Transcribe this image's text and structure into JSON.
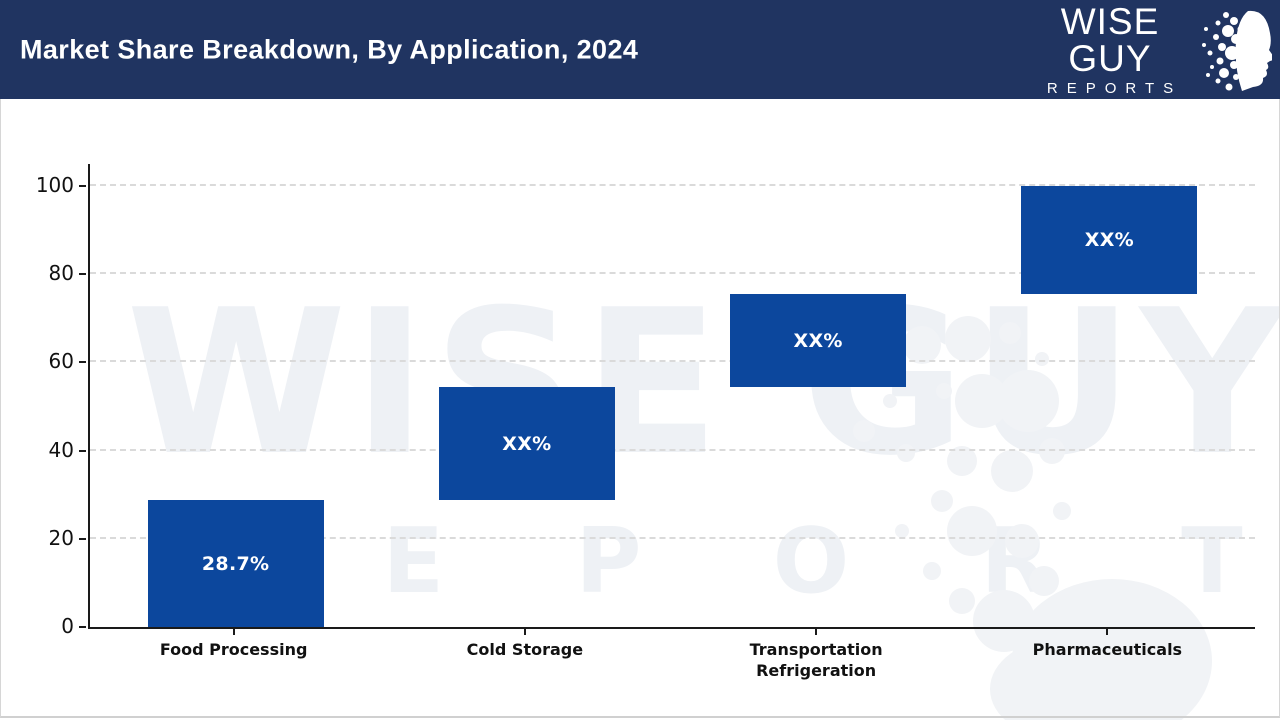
{
  "header": {
    "title": "Market Share Breakdown, By Application, 2024",
    "bg_color": "#203461",
    "logo": {
      "line1": "WISE GUY",
      "line2": "REPORTS"
    }
  },
  "watermark": {
    "line1": "WISE GUY",
    "line2": "R E P O R T S",
    "color": "#eef1f5"
  },
  "chart_data": {
    "type": "bar",
    "subtype": "waterfall",
    "title": "Market Share Breakdown, By Application, 2024",
    "xlabel": "",
    "ylabel": "",
    "categories": [
      "Food Processing",
      "Cold Storage",
      "Transportation Refrigeration",
      "Pharmaceuticals"
    ],
    "segments": [
      {
        "category": "Food Processing",
        "start": 0,
        "end": 28.7,
        "label": "28.7%"
      },
      {
        "category": "Cold Storage",
        "start": 28.7,
        "end": 54.4,
        "label": "XX%"
      },
      {
        "category": "Transportation Refrigeration",
        "start": 54.4,
        "end": 75.5,
        "label": "XX%"
      },
      {
        "category": "Pharmaceuticals",
        "start": 75.5,
        "end": 100,
        "label": "XX%"
      }
    ],
    "yticks": [
      0,
      20,
      40,
      60,
      80,
      100
    ],
    "ylim": [
      0,
      105
    ],
    "grid": "horizontal-dashed",
    "legend": "none",
    "bar_color": "#0c479d",
    "bar_label_color": "#ffffff",
    "axis_color": "#1a1a1a",
    "grid_color": "#dadada",
    "tick_label_color": "#111111"
  }
}
